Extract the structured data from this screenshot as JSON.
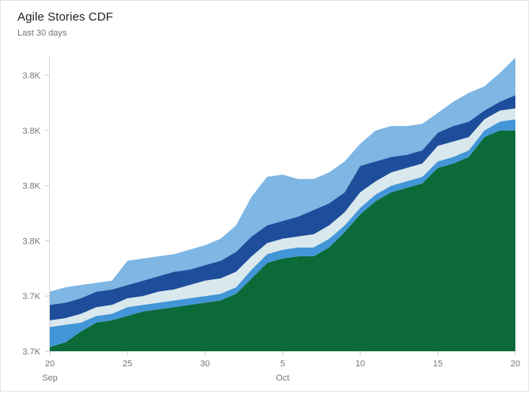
{
  "widget": {
    "title": "Agile Stories CDF",
    "subtitle": "Last 30 days"
  },
  "colors": {
    "card_border": "#e2e2e2",
    "title_text": "#212121",
    "subtitle_text": "#767676",
    "axis_text": "#767676",
    "axis_line": "#d6d6d6",
    "tick_mark": "#c8c8c8"
  },
  "chart_data": {
    "type": "area",
    "stacked": true,
    "values_are": "stacked_cumulative_top_read_from_chart",
    "title": "Agile Stories CDF",
    "subtitle": "Last 30 days",
    "x": [
      "Sep 20",
      "Sep 21",
      "Sep 22",
      "Sep 23",
      "Sep 24",
      "Sep 25",
      "Sep 26",
      "Sep 27",
      "Sep 28",
      "Sep 29",
      "Sep 30",
      "Oct 1",
      "Oct 2",
      "Oct 3",
      "Oct 4",
      "Oct 5",
      "Oct 6",
      "Oct 7",
      "Oct 8",
      "Oct 9",
      "Oct 10",
      "Oct 11",
      "Oct 12",
      "Oct 13",
      "Oct 14",
      "Oct 15",
      "Oct 16",
      "Oct 17",
      "Oct 18",
      "Oct 19",
      "Oct 20"
    ],
    "x_axis": {
      "tick_indices": [
        0,
        5,
        10,
        15,
        20,
        25,
        30
      ],
      "tick_labels": [
        "20",
        "25",
        "30",
        "5",
        "10",
        "15",
        "20"
      ],
      "month_labels": [
        {
          "index": 0,
          "label": "Sep"
        },
        {
          "index": 15,
          "label": "Oct"
        }
      ]
    },
    "y_axis": {
      "min": 3700,
      "max": 3834,
      "ticks": [
        3700,
        3725,
        3750,
        3775,
        3800,
        3825
      ],
      "tick_labels": [
        "3.7K",
        "3.7K",
        "3.8K",
        "3.8K",
        "3.8K",
        "3.8K"
      ]
    },
    "legend": "none",
    "grid": "off",
    "series": [
      {
        "name": "series-1-dark-green",
        "color": "#0b6a38",
        "cumulative_top": [
          3702,
          3704,
          3709,
          3713,
          3714,
          3716,
          3718,
          3719,
          3720,
          3721,
          3722,
          3723,
          3726,
          3733,
          3740,
          3742,
          3743,
          3743,
          3747,
          3754,
          3762,
          3768,
          3772,
          3774,
          3776,
          3783,
          3785,
          3788,
          3797,
          3800,
          3800
        ]
      },
      {
        "name": "series-2-medium-blue",
        "color": "#4296d7",
        "cumulative_top": [
          3711,
          3712,
          3713,
          3716,
          3717,
          3720,
          3721,
          3722,
          3723,
          3724,
          3725,
          3726,
          3729,
          3737,
          3744,
          3746,
          3747,
          3747,
          3751,
          3757,
          3765,
          3771,
          3775,
          3777,
          3779,
          3786,
          3788,
          3791,
          3800,
          3804,
          3805
        ]
      },
      {
        "name": "series-3-pale-blue",
        "color": "#d9e8ed",
        "cumulative_top": [
          3714,
          3715,
          3717,
          3720,
          3721,
          3724,
          3725,
          3727,
          3728,
          3730,
          3732,
          3733,
          3736,
          3743,
          3749,
          3751,
          3752,
          3753,
          3757,
          3763,
          3772,
          3777,
          3781,
          3783,
          3785,
          3793,
          3795,
          3797,
          3805,
          3809,
          3810
        ]
      },
      {
        "name": "series-4-navy-blue",
        "color": "#1e4e9b",
        "cumulative_top": [
          3721,
          3722,
          3724,
          3727,
          3728,
          3730,
          3732,
          3734,
          3736,
          3737,
          3739,
          3741,
          3745,
          3752,
          3757,
          3759,
          3761,
          3764,
          3767,
          3772,
          3784,
          3786,
          3788,
          3789,
          3791,
          3799,
          3802,
          3804,
          3809,
          3813,
          3816
        ]
      },
      {
        "name": "series-5-sky-blue",
        "color": "#7eb6e4",
        "cumulative_top": [
          3727,
          3729,
          3730,
          3731,
          3732,
          3741,
          3742,
          3743,
          3744,
          3746,
          3748,
          3751,
          3757,
          3770,
          3779,
          3780,
          3778,
          3778,
          3781,
          3786,
          3794,
          3800,
          3802,
          3802,
          3803,
          3808,
          3813,
          3817,
          3820,
          3826,
          3833
        ]
      }
    ]
  }
}
